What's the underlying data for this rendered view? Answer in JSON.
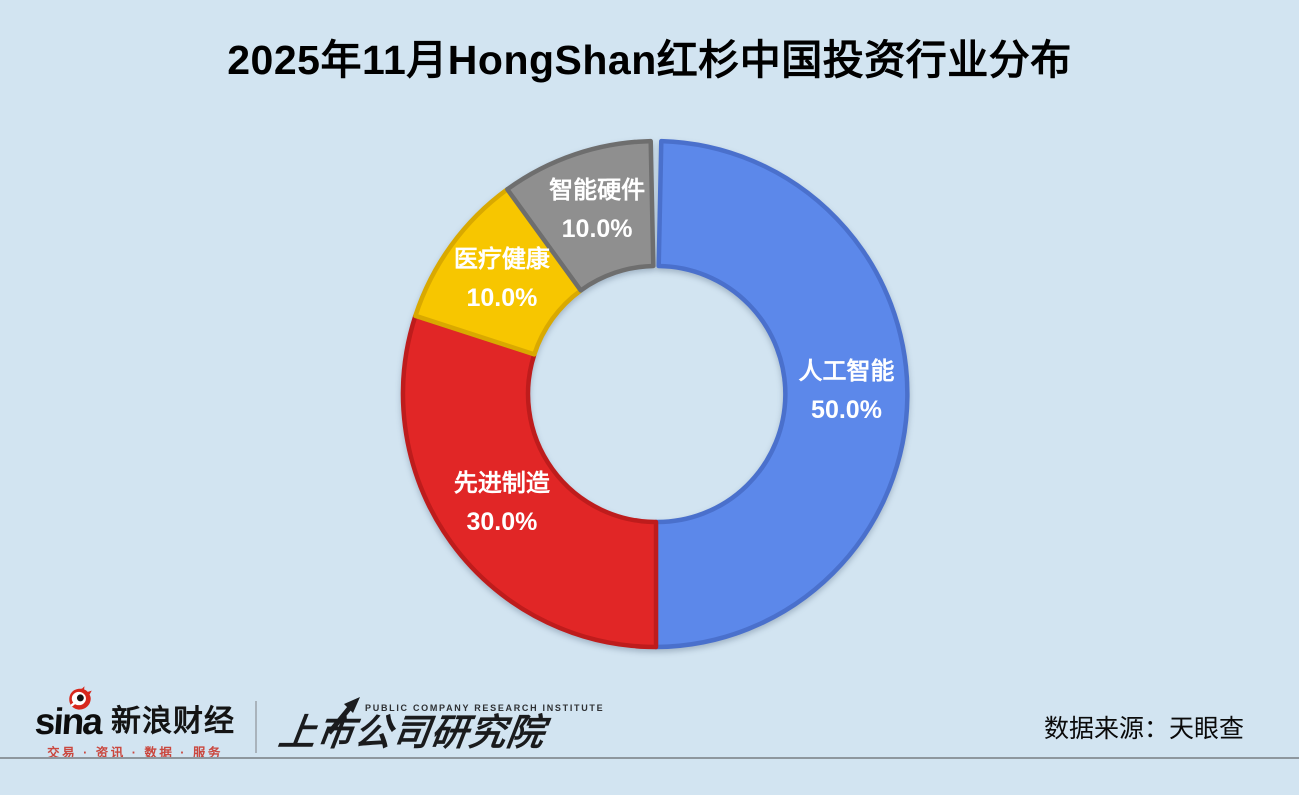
{
  "page": {
    "background": "#d2e4f1"
  },
  "title": "2025年11月HongShan红杉中国投资行业分布",
  "chart_data": {
    "type": "pie",
    "variant": "donut",
    "title": "2025年11月HongShan红杉中国投资行业分布",
    "categories": [
      "人工智能",
      "先进制造",
      "医疗健康",
      "智能硬件"
    ],
    "values": [
      50.0,
      30.0,
      10.0,
      10.0
    ],
    "value_labels": [
      "50.0%",
      "30.0%",
      "10.0%",
      "10.0%"
    ],
    "colors": [
      "#5c88ea",
      "#e12626",
      "#f7c600",
      "#8f8f8f"
    ],
    "edge_colors": [
      "#4a70cc",
      "#be1c1c",
      "#d9a900",
      "#6e6e6e"
    ],
    "label_color": "#ffffff",
    "start_angle_deg": 0,
    "direction": "clockwise",
    "inner_radius_ratio": 0.506,
    "legend": "none",
    "gap_at_top": true
  },
  "footer": {
    "sina": {
      "wordmark": "sina",
      "name_cn": "新浪财经",
      "tagline": "交易 · 资讯 · 数据 · 服务"
    },
    "institute": {
      "name_en": "PUBLIC COMPANY RESEARCH INSTITUTE",
      "name_cn": "上市公司研究院"
    },
    "source_label": "数据来源：天眼查"
  }
}
